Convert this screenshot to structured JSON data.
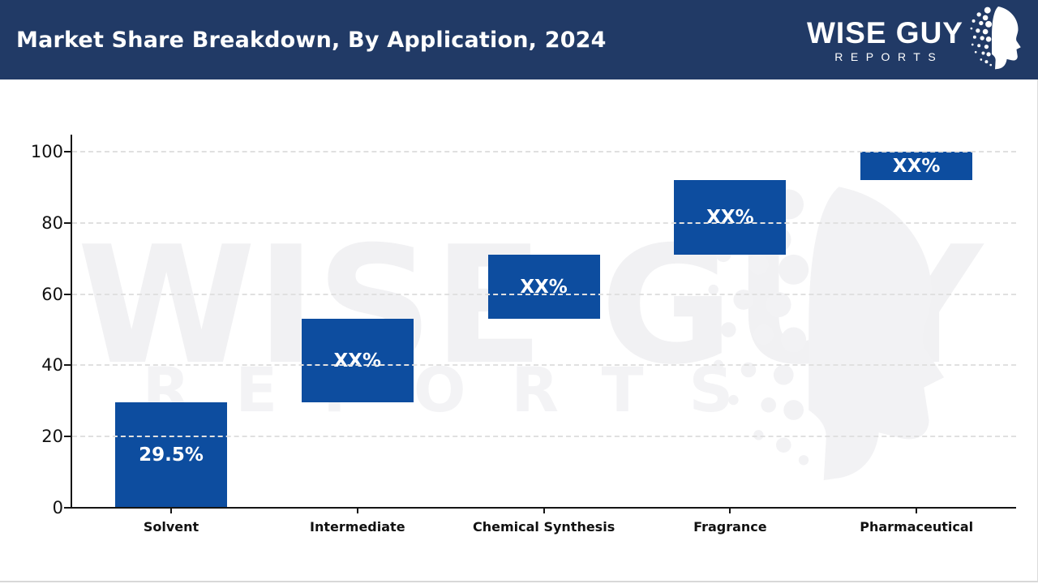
{
  "header": {
    "title": "Market Share Breakdown, By Application, 2024",
    "bg_color": "#213a66",
    "logo": {
      "line1": "WISE GUY",
      "line2": "REPORTS",
      "icon": "dotted-head-profile-icon"
    }
  },
  "watermark": {
    "line1": "WISE GUY",
    "line2": "REPORTS"
  },
  "chart_data": {
    "type": "bar",
    "subtype": "waterfall",
    "title": "Market Share Breakdown, By Application, 2024",
    "xlabel": "",
    "ylabel": "",
    "categories": [
      "Solvent",
      "Intermediate",
      "Chemical Synthesis",
      "Fragrance",
      "Pharmaceutical"
    ],
    "segments": [
      {
        "category": "Solvent",
        "start": 0,
        "end": 29.5,
        "label": "29.5%"
      },
      {
        "category": "Intermediate",
        "start": 29.5,
        "end": 53,
        "label": "XX%"
      },
      {
        "category": "Chemical Synthesis",
        "start": 53,
        "end": 71,
        "label": "XX%"
      },
      {
        "category": "Fragrance",
        "start": 71,
        "end": 92,
        "label": "XX%"
      },
      {
        "category": "Pharmaceutical",
        "start": 92,
        "end": 100,
        "label": "XX%"
      }
    ],
    "ylim": [
      0,
      100
    ],
    "yticks": [
      0,
      20,
      40,
      60,
      80,
      100
    ],
    "grid": "horizontal-dashed",
    "legend": "none",
    "bar_color": "#0d4d9f",
    "bar_label_color": "#ffffff",
    "axis_color": "#151515",
    "gridline_color": "#e0e0e0"
  }
}
